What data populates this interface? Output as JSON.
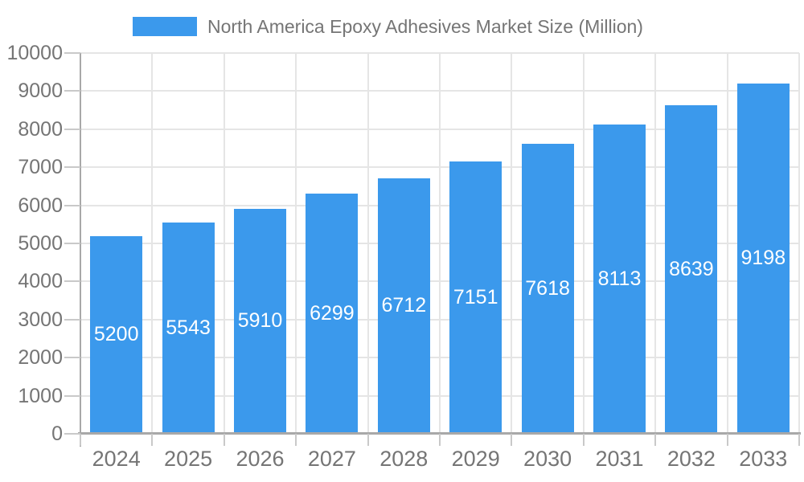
{
  "legend": {
    "label": "North America Epoxy Adhesives Market Size (Million)"
  },
  "colors": {
    "bar": "#3b99ec",
    "bar_label": "#ffffff",
    "grid": "#e5e5e5",
    "axis": "#a8a8a8",
    "tick": "#c9c9c9",
    "text": "#757575",
    "background": "#ffffff"
  },
  "chart_data": {
    "type": "bar",
    "title": "North America Epoxy Adhesives Market Size (Million)",
    "categories": [
      "2024",
      "2025",
      "2026",
      "2027",
      "2028",
      "2029",
      "2030",
      "2031",
      "2032",
      "2033"
    ],
    "values": [
      5200,
      5543,
      5910,
      6299,
      6712,
      7151,
      7618,
      8113,
      8639,
      9198
    ],
    "xlabel": "",
    "ylabel": "",
    "ylim": [
      0,
      10000
    ],
    "ytick_step": 1000,
    "grid": true,
    "legend_position": "top",
    "value_label_position": "inside-center"
  }
}
